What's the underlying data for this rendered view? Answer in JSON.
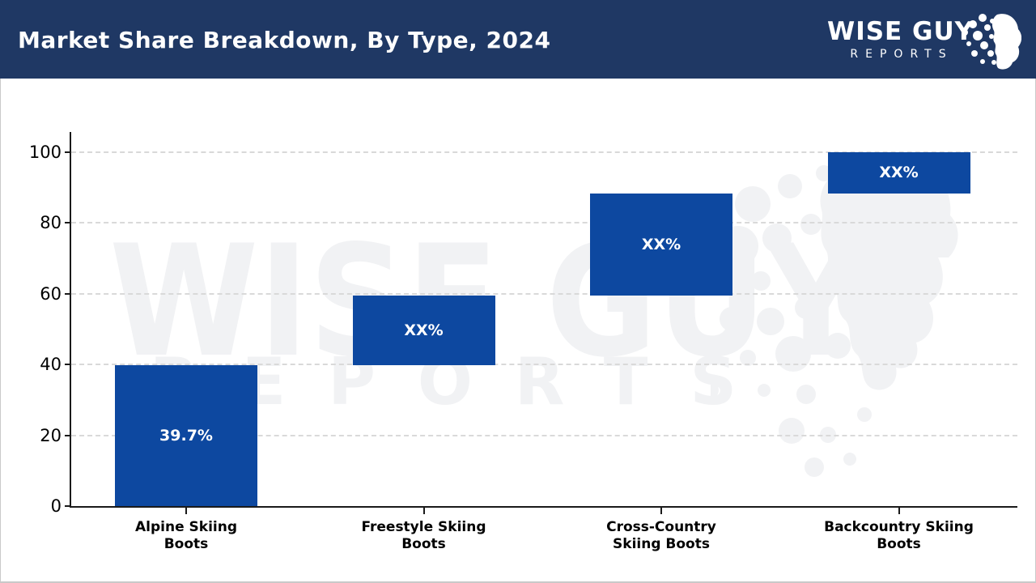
{
  "header": {
    "title": "Market Share Breakdown, By Type, 2024",
    "bg_color": "#1f3864",
    "logo": {
      "name": "WISE GUY REPORTS",
      "line1": "WISE GUY",
      "line2": "REPORTS"
    }
  },
  "watermark": {
    "line1": "WISE GUY",
    "line2": "REPORTS"
  },
  "chart_data": {
    "type": "bar",
    "subtype": "waterfall",
    "title": "Market Share Breakdown, By Type, 2024",
    "categories": [
      {
        "label": "Alpine Skiing Boots",
        "lines": [
          "Alpine Skiing",
          "Boots"
        ]
      },
      {
        "label": "Freestyle Skiing Boots",
        "lines": [
          "Freestyle Skiing",
          "Boots"
        ]
      },
      {
        "label": "Cross-Country Skiing Boots",
        "lines": [
          "Cross-Country",
          "Skiing Boots"
        ]
      },
      {
        "label": "Backcountry Skiing Boots",
        "lines": [
          "Backcountry Skiing",
          "Boots"
        ]
      }
    ],
    "segments": [
      {
        "category": "Alpine Skiing Boots",
        "label": "39.7%",
        "start": 0,
        "end": 39.7,
        "value": 39.7
      },
      {
        "category": "Freestyle Skiing Boots",
        "label": "XX%",
        "start": 39.7,
        "end": 59.4,
        "value": null
      },
      {
        "category": "Cross-Country Skiing Boots",
        "label": "XX%",
        "start": 59.4,
        "end": 88.3,
        "value": null
      },
      {
        "category": "Backcountry Skiing Boots",
        "label": "XX%",
        "start": 88.3,
        "end": 100,
        "value": null
      }
    ],
    "ylim": [
      0,
      100
    ],
    "yticks": [
      0,
      20,
      40,
      60,
      80,
      100
    ],
    "grid": "horizontal-dashed",
    "legend": "none",
    "bar_color": "#0d48a0",
    "bar_label_color": "#ffffff",
    "axis_color": "#1a1a1a"
  }
}
